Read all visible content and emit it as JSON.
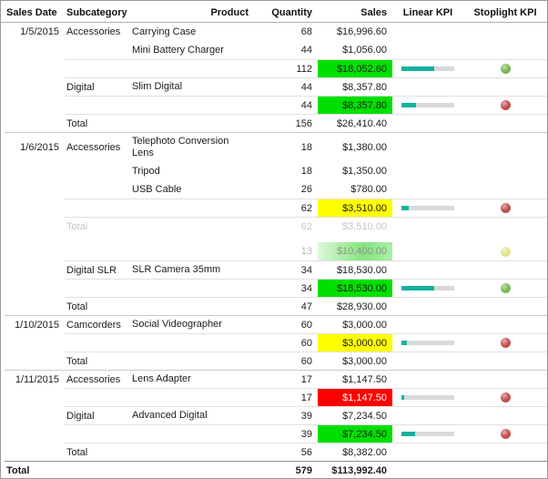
{
  "columns": [
    "Sales Date",
    "Subcategory",
    "Product",
    "Quantity",
    "Sales",
    "Linear KPI",
    "Stoplight KPI"
  ],
  "colors": {
    "kpi_green": "#00e000",
    "kpi_yellow": "#ffff00",
    "kpi_red": "#fe0000",
    "bar_teal": "#12b2a0",
    "bar_track": "#d9d9d9",
    "dot_green": "#79b752",
    "dot_red": "#c0504d",
    "dot_pale": "#e2e48f",
    "faded_gradient": [
      "#dff8da",
      "#83e57d",
      "#aaefa6"
    ]
  },
  "rows": [
    {
      "type": "detail",
      "date": "1/5/2015",
      "sub": "Accessories",
      "product": "Carrying Case",
      "qty": "68",
      "sales": "$16,996.60",
      "line": "none"
    },
    {
      "type": "detail",
      "product": "Mini Battery Charger",
      "qty": "44",
      "sales": "$1,056.00",
      "line": "none"
    },
    {
      "type": "kpi",
      "qty": "112",
      "sales": "$18,052.60",
      "sales_bg": "green",
      "bar": 0.62,
      "dot": "green",
      "line": "sub"
    },
    {
      "type": "detail",
      "sub": "Digital",
      "product": "Slim Digital",
      "qty": "44",
      "sales": "$8,357.80",
      "line": "sub"
    },
    {
      "type": "kpi",
      "qty": "44",
      "sales": "$8,357.80",
      "sales_bg": "green",
      "bar": 0.28,
      "dot": "red",
      "line": "sub"
    },
    {
      "type": "total",
      "sub": "Total",
      "qty": "156",
      "sales": "$26,410.40",
      "line": "sub"
    },
    {
      "type": "detail",
      "date": "1/6/2015",
      "sub": "Accessories",
      "product": "Telephoto Conversion Lens",
      "qty": "18",
      "sales": "$1,380.00",
      "line": "full"
    },
    {
      "type": "detail",
      "product": "Tripod",
      "qty": "18",
      "sales": "$1,350.00",
      "line": "none"
    },
    {
      "type": "detail",
      "product": "USB Cable",
      "qty": "26",
      "sales": "$780.00",
      "line": "none"
    },
    {
      "type": "kpi",
      "qty": "62",
      "sales": "$3,510.00",
      "sales_bg": "yellow",
      "bar": 0.13,
      "dot": "red",
      "line": "sub"
    },
    {
      "type": "total",
      "sub": "Total",
      "qty": "62",
      "sales": "$3,510.00",
      "muted": true,
      "line": "sub"
    },
    {
      "type": "gap"
    },
    {
      "type": "faded",
      "qty": "13",
      "sales": "$10,400.00",
      "sales_bg": "gradient",
      "dot": "pale",
      "line": "none"
    },
    {
      "type": "detail",
      "sub": "Digital SLR",
      "product": "SLR Camera 35mm",
      "qty": "34",
      "sales": "$18,530.00",
      "line": "sub"
    },
    {
      "type": "kpi",
      "qty": "34",
      "sales": "$18,530.00",
      "sales_bg": "green",
      "bar": 0.62,
      "dot": "green",
      "line": "sub"
    },
    {
      "type": "total",
      "sub": "Total",
      "qty": "47",
      "sales": "$28,930.00",
      "line": "sub"
    },
    {
      "type": "detail",
      "date": "1/10/2015",
      "sub": "Camcorders",
      "product": "Social Videographer",
      "qty": "60",
      "sales": "$3,000.00",
      "line": "full"
    },
    {
      "type": "kpi",
      "qty": "60",
      "sales": "$3,000.00",
      "sales_bg": "yellow",
      "bar": 0.1,
      "dot": "red",
      "line": "sub"
    },
    {
      "type": "total",
      "sub": "Total",
      "qty": "60",
      "sales": "$3,000.00",
      "line": "sub"
    },
    {
      "type": "detail",
      "date": "1/11/2015",
      "sub": "Accessories",
      "product": "Lens Adapter",
      "qty": "17",
      "sales": "$1,147.50",
      "line": "full"
    },
    {
      "type": "kpi",
      "qty": "17",
      "sales": "$1,147.50",
      "sales_bg": "red",
      "bar": 0.05,
      "dot": "red",
      "line": "sub"
    },
    {
      "type": "detail",
      "sub": "Digital",
      "product": "Advanced Digital",
      "qty": "39",
      "sales": "$7,234.50",
      "line": "sub"
    },
    {
      "type": "kpi",
      "qty": "39",
      "sales": "$7,234.50",
      "sales_bg": "green",
      "bar": 0.25,
      "dot": "red",
      "line": "sub"
    },
    {
      "type": "total",
      "sub": "Total",
      "qty": "56",
      "sales": "$8,382.00",
      "line": "sub"
    },
    {
      "type": "grand",
      "date": "Total",
      "qty": "579",
      "sales": "$113,992.40"
    }
  ]
}
